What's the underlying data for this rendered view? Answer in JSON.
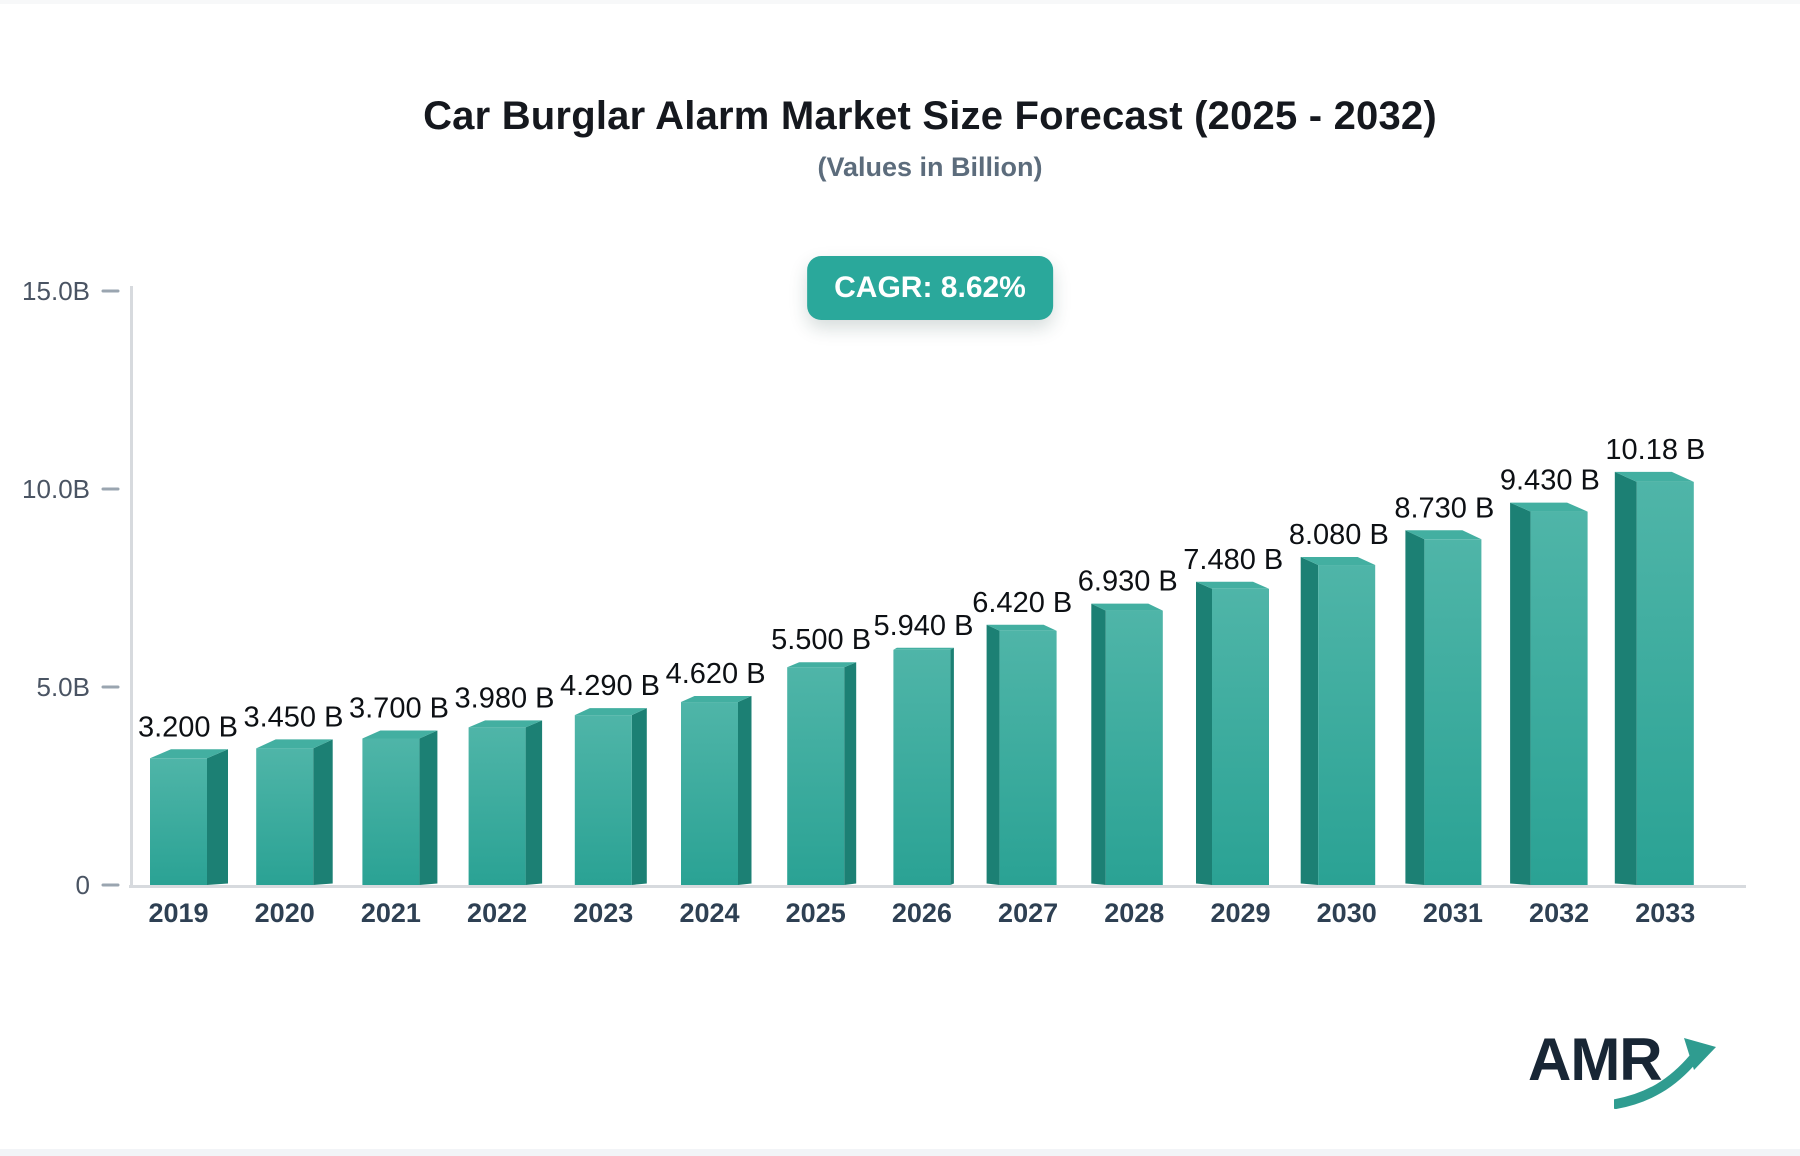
{
  "header": {
    "title": "Car Burglar Alarm Market Size Forecast (2025 - 2032)",
    "subtitle": "(Values in Billion)",
    "cagr_badge": "CAGR: 8.62%"
  },
  "branding": {
    "logo_text": "AMR",
    "logo_icon": "growth-arrow-icon"
  },
  "colors": {
    "badge_bg": "#2aa89b",
    "badge_text": "#ffffff",
    "title_text": "#15181e",
    "subtitle_text": "#5c6c7c",
    "bar_front_top": "#4fb5a8",
    "bar_front_bottom": "#2aa294",
    "bar_side": "#1c8074",
    "bar_top_face": "#43afa1",
    "axis_line": "#d7dade",
    "tick_mark": "#9aa5b0",
    "y_label_text": "#4a5463",
    "x_label_text": "#2e4053",
    "value_label_text": "#0d1014",
    "logo_text_color": "#182635",
    "logo_arrow_color": "#2f9c90"
  },
  "chart_data": {
    "type": "bar",
    "bar_style": "3d-perspective",
    "title": "Car Burglar Alarm Market Size Forecast (2025 - 2032)",
    "subtitle": "(Values in Billion)",
    "annotation": "CAGR: 8.62%",
    "categories": [
      "2019",
      "2020",
      "2021",
      "2022",
      "2023",
      "2024",
      "2025",
      "2026",
      "2027",
      "2028",
      "2029",
      "2030",
      "2031",
      "2032",
      "2033"
    ],
    "values": [
      3.2,
      3.45,
      3.7,
      3.98,
      4.29,
      4.62,
      5.5,
      5.94,
      6.42,
      6.93,
      7.48,
      8.08,
      8.73,
      9.43,
      10.18
    ],
    "value_labels": [
      "3.200 B",
      "3.450 B",
      "3.700 B",
      "3.980 B",
      "4.290 B",
      "4.620 B",
      "5.500 B",
      "5.940 B",
      "6.420 B",
      "6.930 B",
      "7.480 B",
      "8.080 B",
      "8.730 B",
      "9.430 B",
      "10.18 B"
    ],
    "unit": "B",
    "xlabel": "",
    "ylabel": "",
    "ylim": [
      0,
      15
    ],
    "yticks": [
      {
        "value": 15,
        "label": "15.0B"
      },
      {
        "value": 10,
        "label": "10.0B"
      },
      {
        "value": 5,
        "label": "5.0B"
      },
      {
        "value": 0,
        "label": "0"
      }
    ],
    "grid": false,
    "legend": false
  }
}
